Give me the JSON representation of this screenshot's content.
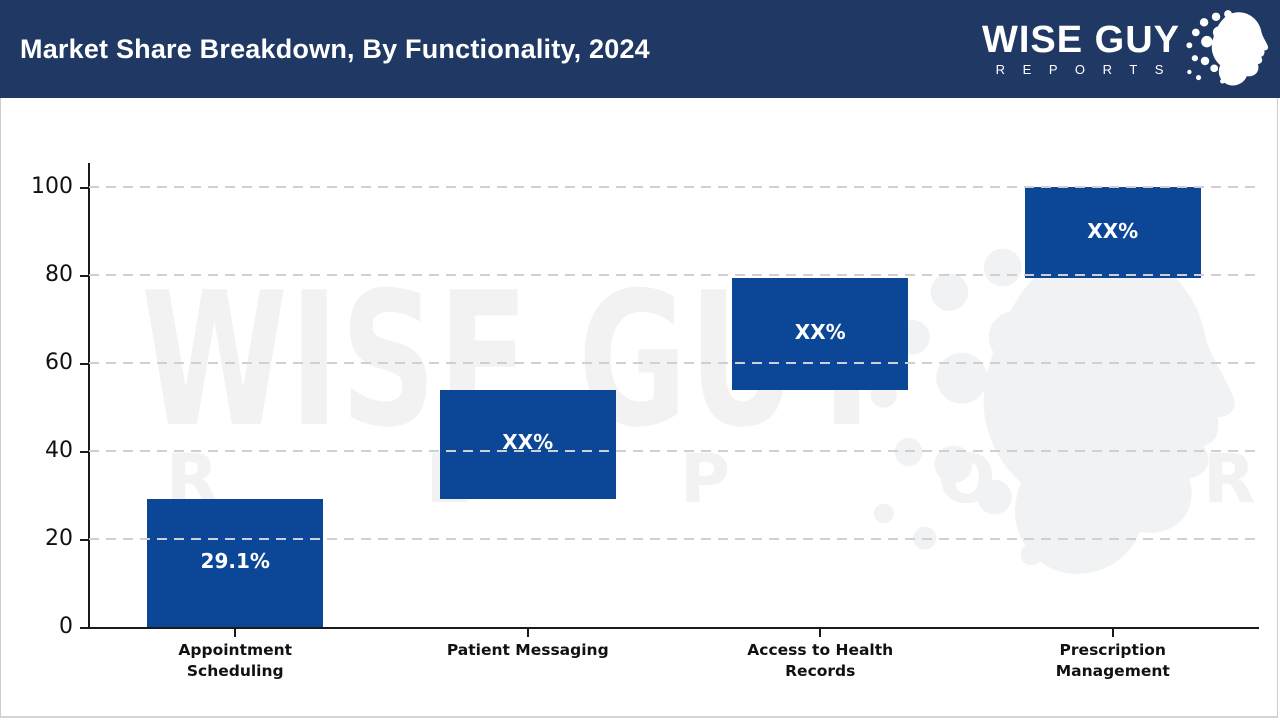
{
  "header": {
    "title": "Market Share Breakdown, By Functionality, 2024",
    "logo": {
      "brand": "WISE GUY",
      "sub": "R E P O R T S"
    }
  },
  "watermark": {
    "line1": "WISE GUY",
    "line2": "R E P O R T S"
  },
  "chart_data": {
    "type": "bar",
    "subtype": "waterfall",
    "title": "Market Share Breakdown, By Functionality, 2024",
    "categories": [
      "Appointment Scheduling",
      "Patient Messaging",
      "Access to Health Records",
      "Prescription Management"
    ],
    "categories_wrapped": [
      [
        "Appointment",
        "Scheduling"
      ],
      [
        "Patient Messaging"
      ],
      [
        "Access to Health",
        "Records"
      ],
      [
        "Prescription",
        "Management"
      ]
    ],
    "segments": [
      {
        "category": "Appointment Scheduling",
        "label": "29.1%",
        "start": 0,
        "end": 29.1
      },
      {
        "category": "Patient Messaging",
        "label": "XX%",
        "start": 29.1,
        "end": 53.9
      },
      {
        "category": "Access to Health Records",
        "label": "XX%",
        "start": 53.9,
        "end": 79.3
      },
      {
        "category": "Prescription Management",
        "label": "XX%",
        "start": 79.3,
        "end": 100
      }
    ],
    "yticks": [
      0,
      20,
      40,
      60,
      80,
      100
    ],
    "ylim": [
      0,
      105.5
    ],
    "xlabel": "",
    "ylabel": "",
    "grid": {
      "horizontal": true,
      "style": "dashed",
      "color": "#d0d0d0",
      "above_bars": true
    },
    "legend": "none",
    "colors": {
      "bar": "#0B4796",
      "bar_label": "#ffffff",
      "header_bg": "#203864",
      "axis": "#1a1a1a",
      "watermark": "#f2f2f3"
    }
  }
}
